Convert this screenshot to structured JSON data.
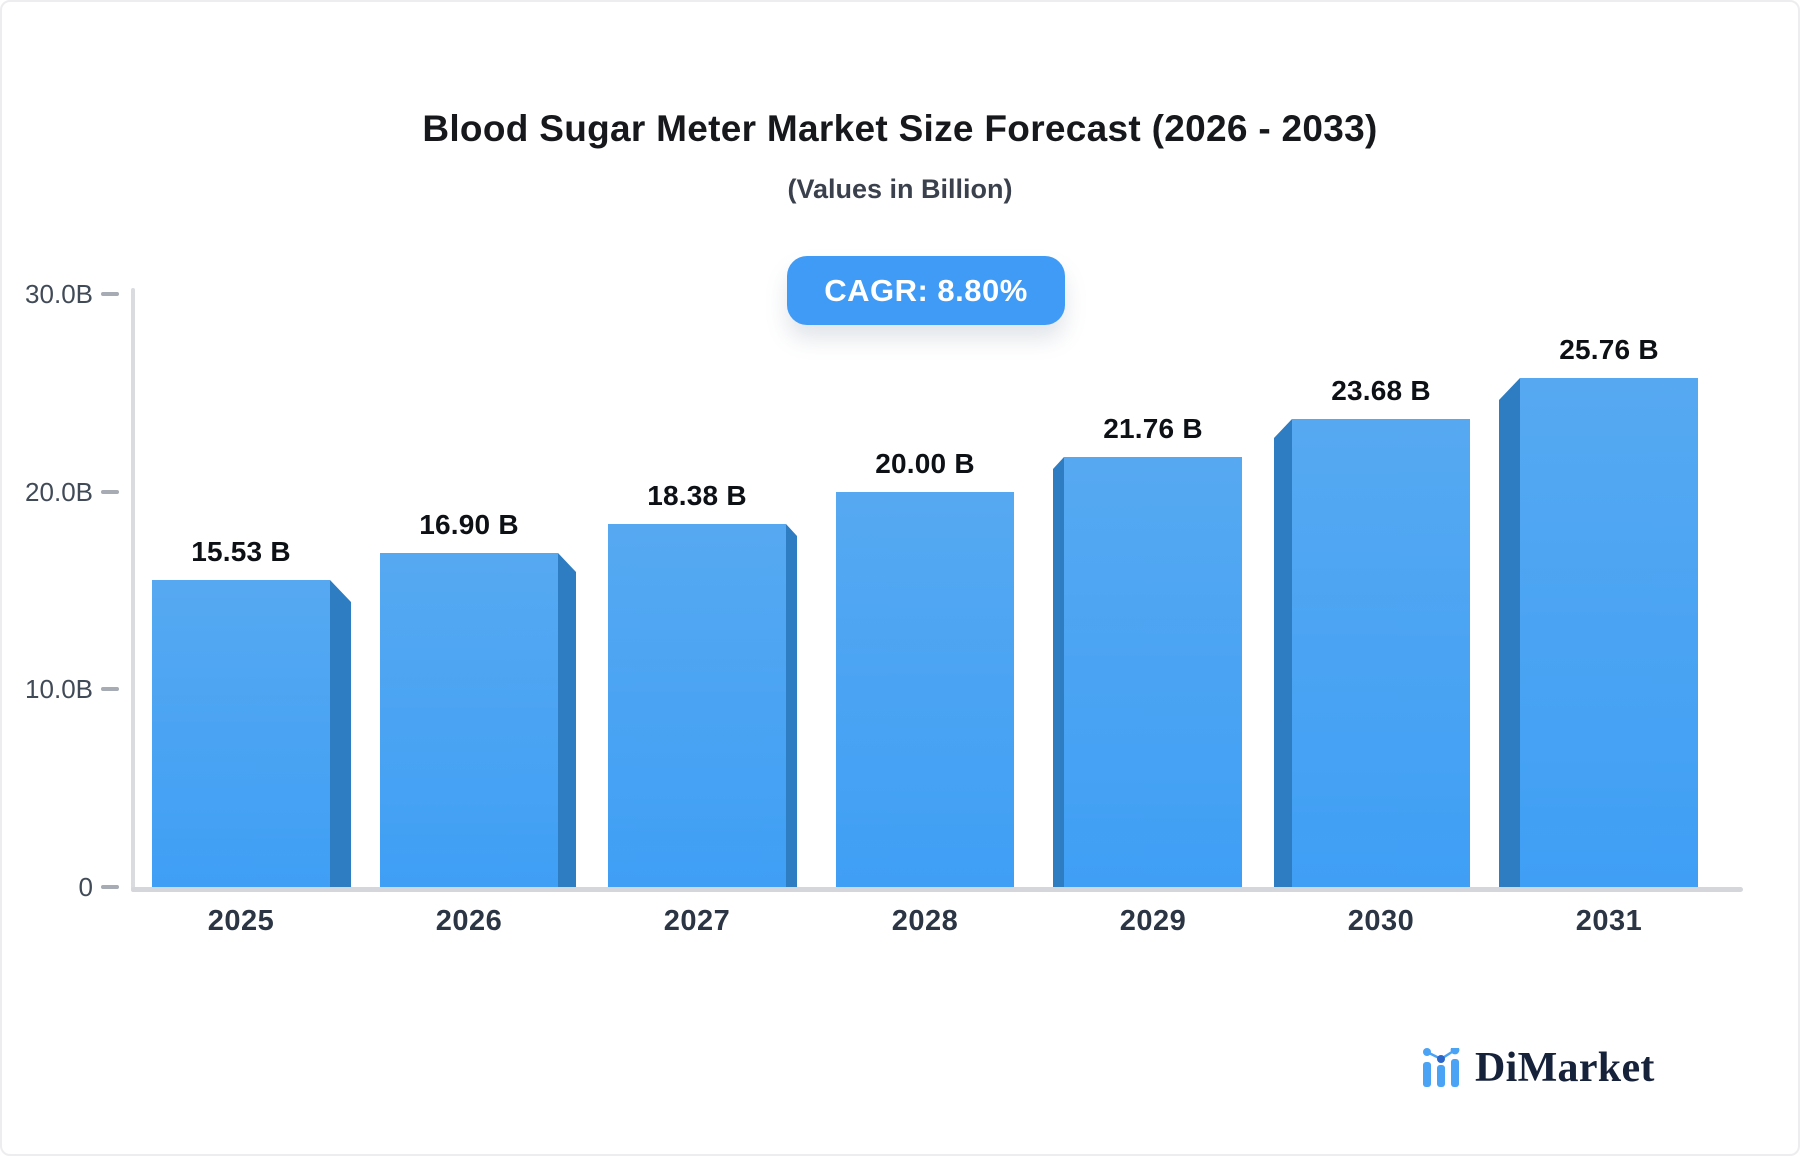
{
  "title": "Blood Sugar Meter Market Size Forecast (2026 - 2033)",
  "subtitle": "(Values in Billion)",
  "cagr": {
    "label": "CAGR: 8.80%"
  },
  "logo": {
    "brand": "DiMarket",
    "icon": "bar-line-chart-icon"
  },
  "colors": {
    "bar_face_top": "#56a9f1",
    "bar_face_bottom": "#3f9ff5",
    "bar_side": "#2e7cc2",
    "badge_bg": "#3f9bf5",
    "axis": "#d4d6db",
    "tick": "#a6abb4",
    "y_label": "#414a57",
    "x_label": "#2b3544",
    "value_label": "#0d1116",
    "title_color": "#16181c",
    "logo_text": "#16213a",
    "logo_icon_blue": "#4aa3f5",
    "logo_dot_dark": "#2b66c8"
  },
  "chart_data": {
    "type": "bar",
    "style": "3d-extruded",
    "title": "Blood Sugar Meter Market Size Forecast (2026 - 2033)",
    "subtitle": "(Values in Billion)",
    "xlabel": "",
    "ylabel": "",
    "unit": "B",
    "grid": false,
    "legend": false,
    "ylim": [
      0,
      30
    ],
    "categories": [
      "2025",
      "2026",
      "2027",
      "2028",
      "2029",
      "2030",
      "2031"
    ],
    "values": [
      15.53,
      16.9,
      18.38,
      20.0,
      21.76,
      23.68,
      25.76
    ],
    "value_labels": [
      "15.53 B",
      "16.90 B",
      "18.38 B",
      "20.00 B",
      "21.76 B",
      "23.68 B",
      "25.76 B"
    ],
    "yticks": [
      {
        "label": "30.0B",
        "value": 30
      },
      {
        "label": "20.0B",
        "value": 20
      },
      {
        "label": "10.0B",
        "value": 10
      },
      {
        "label": "0",
        "value": 0
      }
    ]
  }
}
